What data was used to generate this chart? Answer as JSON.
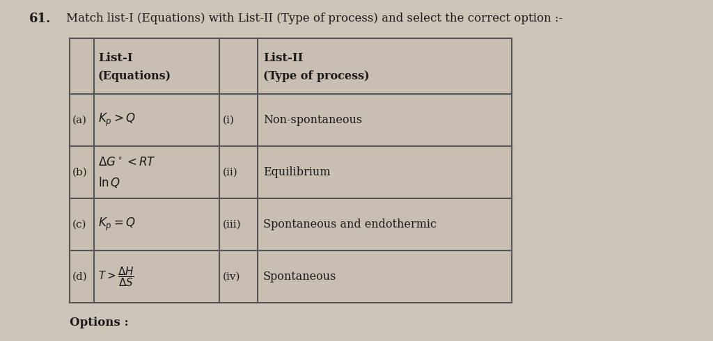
{
  "title_number": "61.",
  "title_text": "Match list-I (Equations) with List-II (Type of process) and select the correct option :-",
  "background_color": "#cdc5b8",
  "table_bg": "#c8bfb2",
  "border_color": "#555555",
  "text_color": "#1a1a1a",
  "footer_text": "Options :",
  "fig_width": 10.24,
  "fig_height": 4.9,
  "dpi": 100
}
